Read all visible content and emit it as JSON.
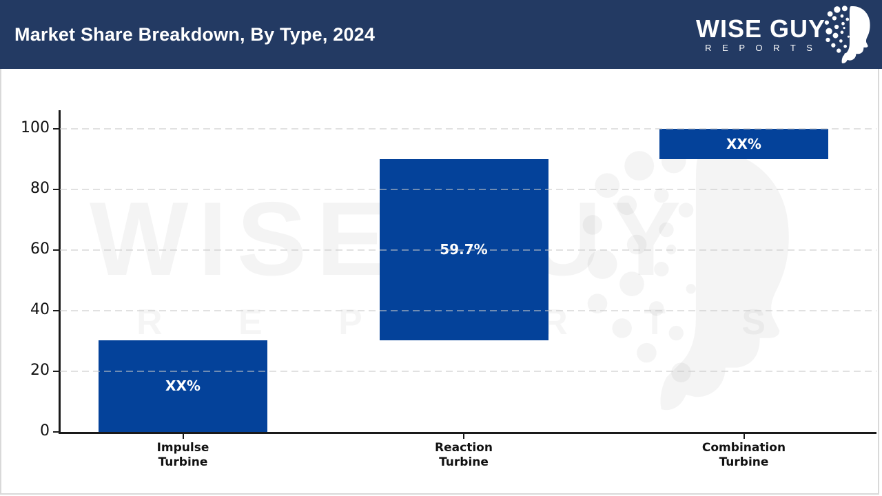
{
  "header": {
    "title": "Market Share Breakdown, By Type, 2024",
    "logo": {
      "line1": "WISE GUY",
      "line2": "R E P O R T S"
    }
  },
  "watermark": {
    "line1": "WISE GUY",
    "line2": "R E P O R T S"
  },
  "chart_data": {
    "type": "bar",
    "subtype": "waterfall",
    "title": "Market Share Breakdown, By Type, 2024",
    "categories": [
      "Impulse Turbine",
      "Reaction Turbine",
      "Combination Turbine"
    ],
    "series": [
      {
        "name": "Market Share",
        "segments": [
          {
            "category": "Impulse Turbine",
            "start": 0,
            "end": 30.2,
            "label": "XX%"
          },
          {
            "category": "Reaction Turbine",
            "start": 30.2,
            "end": 89.9,
            "label": "59.7%"
          },
          {
            "category": "Combination Turbine",
            "start": 89.9,
            "end": 100,
            "label": "XX%"
          }
        ]
      }
    ],
    "xlabel": "",
    "ylabel": "",
    "yticks": [
      0,
      20,
      40,
      60,
      80,
      100
    ],
    "ylim": [
      0,
      107
    ],
    "grid": "dashed-horizontal",
    "legend": "none",
    "colors": {
      "bar": "#04429a",
      "bar_label": "#ffffff",
      "axis": "#1a1a1a",
      "grid": "#d9d9d9",
      "tick_label": "#111111",
      "header_bg": "#233a63",
      "header_text": "#ffffff"
    }
  }
}
